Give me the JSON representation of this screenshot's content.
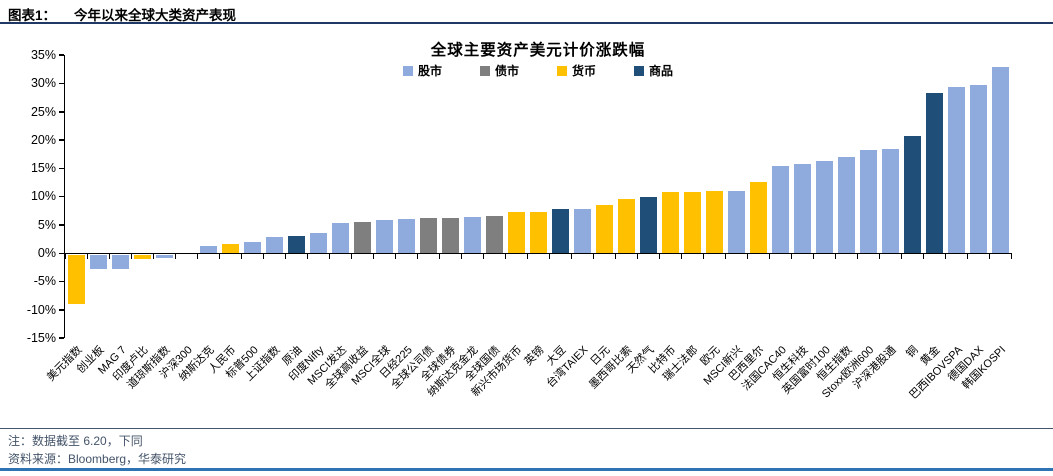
{
  "header": {
    "figure_label": "图表1：",
    "figure_title": "今年以来全球大类资产表现"
  },
  "chart_data": {
    "type": "bar",
    "title": "全球主要资产美元计价涨跌幅",
    "ylim": [
      -15,
      35
    ],
    "yticks": [
      35,
      30,
      25,
      20,
      15,
      10,
      5,
      0,
      -5,
      -10,
      -15
    ],
    "ytick_suffix": "%",
    "grid": false,
    "legend_position": "top-center",
    "groups": {
      "stock": {
        "label": "股市",
        "color": "#8FAADC"
      },
      "bond": {
        "label": "债市",
        "color": "#7F7F7F"
      },
      "currency": {
        "label": "货币",
        "color": "#FFC000"
      },
      "commodity": {
        "label": "商品",
        "color": "#1F4E79"
      }
    },
    "legend_order": [
      "stock",
      "bond",
      "currency",
      "commodity"
    ],
    "bars": [
      {
        "label": "美元指数",
        "value": -8.8,
        "group": "currency"
      },
      {
        "label": "创业板",
        "value": -2.6,
        "group": "stock"
      },
      {
        "label": "MAG 7",
        "value": -2.5,
        "group": "stock"
      },
      {
        "label": "印度卢比",
        "value": -0.8,
        "group": "currency"
      },
      {
        "label": "道琼斯指数",
        "value": -0.6,
        "group": "stock"
      },
      {
        "label": "沪深300",
        "value": 0.0,
        "group": "stock"
      },
      {
        "label": "纳斯达克",
        "value": 1.2,
        "group": "stock"
      },
      {
        "label": "人民币",
        "value": 1.6,
        "group": "currency"
      },
      {
        "label": "标普500",
        "value": 2.0,
        "group": "stock"
      },
      {
        "label": "上证指数",
        "value": 2.8,
        "group": "stock"
      },
      {
        "label": "原油",
        "value": 3.0,
        "group": "commodity"
      },
      {
        "label": "印度Nifty",
        "value": 3.6,
        "group": "stock"
      },
      {
        "label": "MSCI发达",
        "value": 5.3,
        "group": "stock"
      },
      {
        "label": "全球高收益",
        "value": 5.4,
        "group": "bond"
      },
      {
        "label": "MSCI全球",
        "value": 5.8,
        "group": "stock"
      },
      {
        "label": "日经225",
        "value": 6.0,
        "group": "stock"
      },
      {
        "label": "全球公司债",
        "value": 6.2,
        "group": "bond"
      },
      {
        "label": "全球债券",
        "value": 6.2,
        "group": "bond"
      },
      {
        "label": "纳斯达克金龙",
        "value": 6.4,
        "group": "stock"
      },
      {
        "label": "全球国债",
        "value": 6.5,
        "group": "bond"
      },
      {
        "label": "新兴市场货币",
        "value": 7.2,
        "group": "currency"
      },
      {
        "label": "英镑",
        "value": 7.3,
        "group": "currency"
      },
      {
        "label": "大豆",
        "value": 7.7,
        "group": "commodity"
      },
      {
        "label": "台湾TAIEX",
        "value": 7.8,
        "group": "stock"
      },
      {
        "label": "日元",
        "value": 8.5,
        "group": "currency"
      },
      {
        "label": "墨西哥比索",
        "value": 9.6,
        "group": "currency"
      },
      {
        "label": "天然气",
        "value": 9.9,
        "group": "commodity"
      },
      {
        "label": "比特币",
        "value": 10.7,
        "group": "currency"
      },
      {
        "label": "瑞士法郎",
        "value": 10.8,
        "group": "currency"
      },
      {
        "label": "欧元",
        "value": 10.9,
        "group": "currency"
      },
      {
        "label": "MSCI新兴",
        "value": 10.9,
        "group": "stock"
      },
      {
        "label": "巴西里尔",
        "value": 12.5,
        "group": "currency"
      },
      {
        "label": "法国CAC40",
        "value": 15.4,
        "group": "stock"
      },
      {
        "label": "恒生科技",
        "value": 15.7,
        "group": "stock"
      },
      {
        "label": "英国富时100",
        "value": 16.3,
        "group": "stock"
      },
      {
        "label": "恒生指数",
        "value": 16.9,
        "group": "stock"
      },
      {
        "label": "Stoxx欧洲600",
        "value": 18.2,
        "group": "stock"
      },
      {
        "label": "沪深港股通",
        "value": 18.4,
        "group": "stock"
      },
      {
        "label": "铜",
        "value": 20.6,
        "group": "commodity"
      },
      {
        "label": "黄金",
        "value": 28.2,
        "group": "commodity"
      },
      {
        "label": "巴西IBOVSPA",
        "value": 29.3,
        "group": "stock"
      },
      {
        "label": "德国DAX",
        "value": 29.6,
        "group": "stock"
      },
      {
        "label": "韩国KOSPI",
        "value": 32.8,
        "group": "stock"
      }
    ]
  },
  "footer": {
    "note": "注：数据截至 6.20，下同",
    "source": "资料来源：Bloomberg，华泰研究"
  },
  "colors": {
    "header_rule": "#1F3864",
    "note_rule": "#44546A",
    "bottom_rule": "#2E74B5",
    "note_text": "#44546A"
  }
}
